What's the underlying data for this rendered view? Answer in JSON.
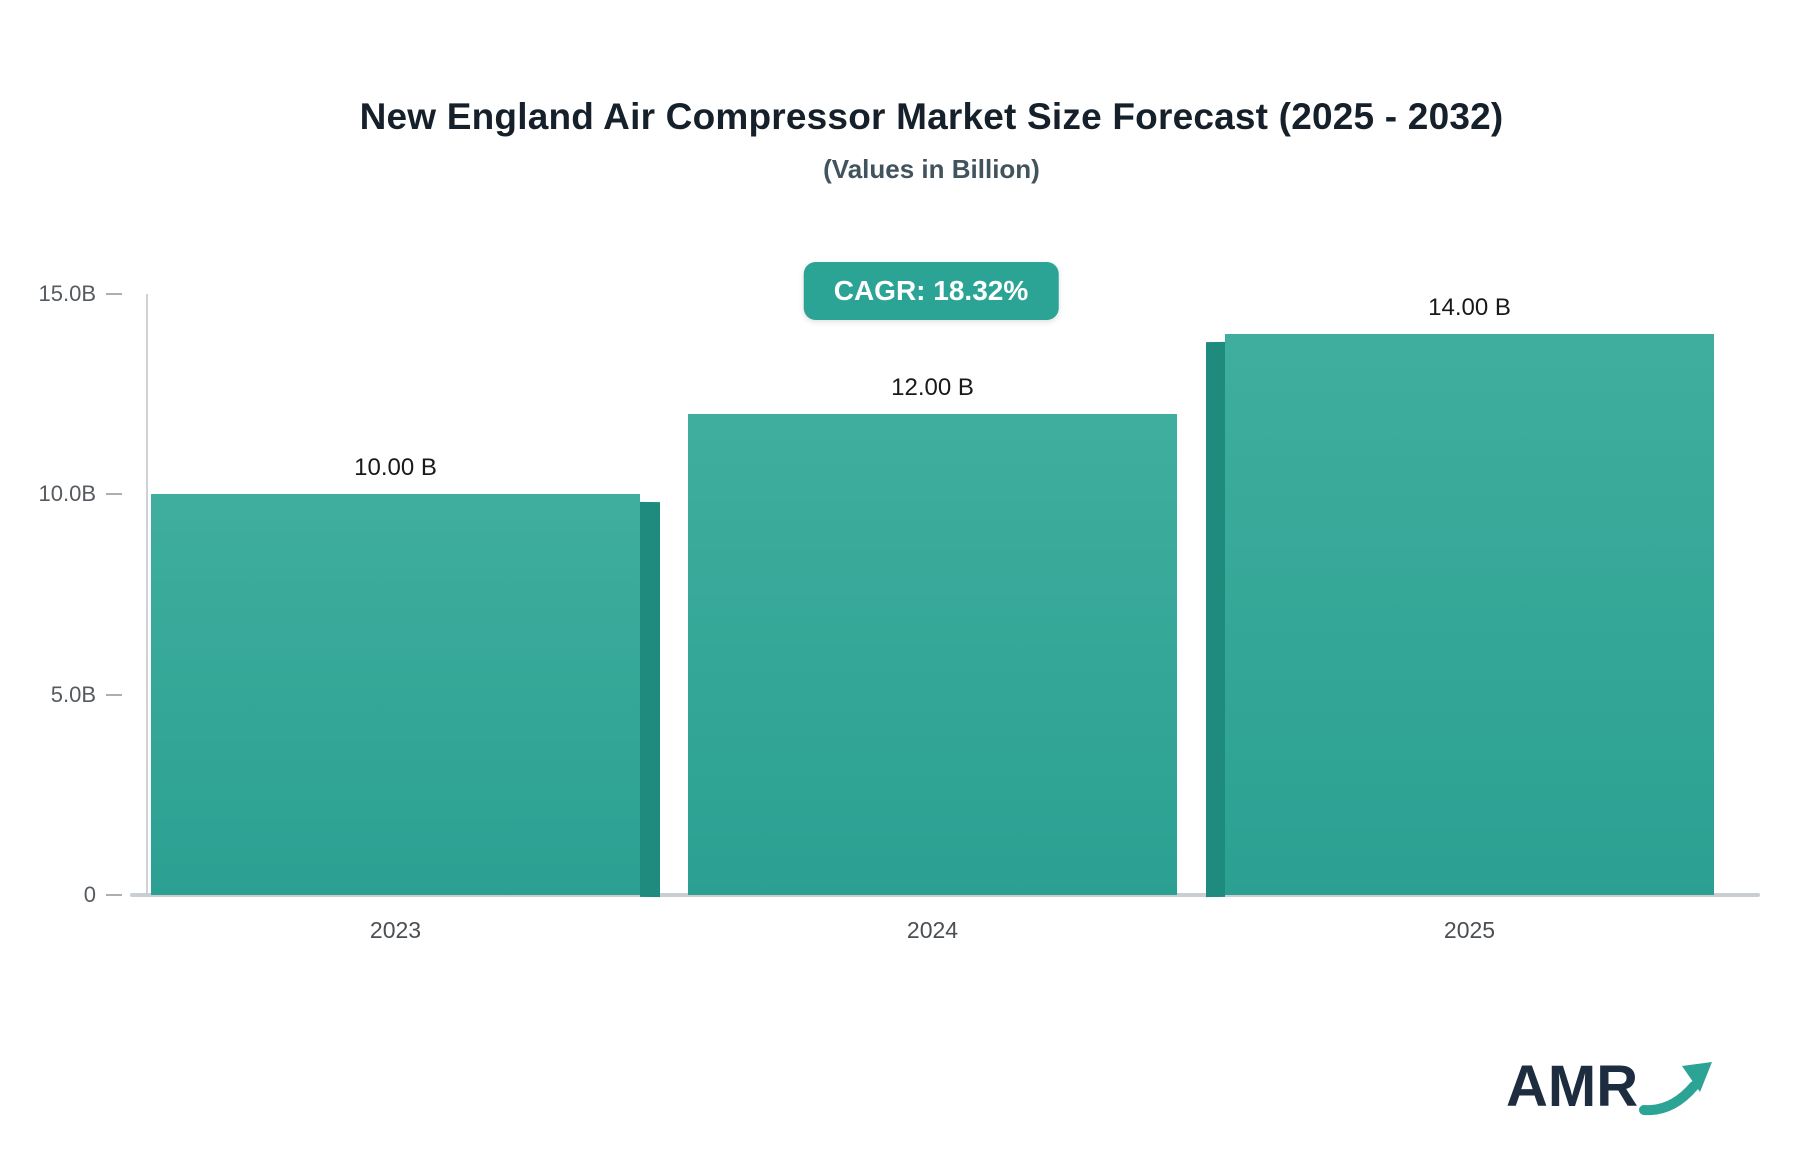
{
  "chart_data": {
    "type": "bar",
    "title": "New England Air Compressor Market Size Forecast (2025 - 2032)",
    "subtitle": "(Values in Billion)",
    "annotation": "CAGR: 18.32%",
    "categories": [
      "2023",
      "2024",
      "2025"
    ],
    "values": [
      10.0,
      12.0,
      14.0
    ],
    "value_labels": [
      "10.00 B",
      "12.00 B",
      "14.00 B"
    ],
    "ylim": [
      0,
      15
    ],
    "yticks": [
      {
        "label": "15.0B",
        "value": 15
      },
      {
        "label": "10.0B",
        "value": 10
      },
      {
        "label": "5.0B",
        "value": 5
      },
      {
        "label": "0",
        "value": 0
      }
    ],
    "grid": false,
    "legend": "none",
    "colors": {
      "bar_top": "#3fae9e",
      "bar_bottom": "#2ba092",
      "bar_side": "#1f8a7e",
      "badge_bg": "#2ba496",
      "title_text": "#15202b",
      "subtitle_text": "#41535d",
      "axis_text": "#555b60",
      "logo_text": "#1d2d3f",
      "logo_arrow": "#2ba496"
    }
  },
  "logo": {
    "text": "AMR"
  }
}
